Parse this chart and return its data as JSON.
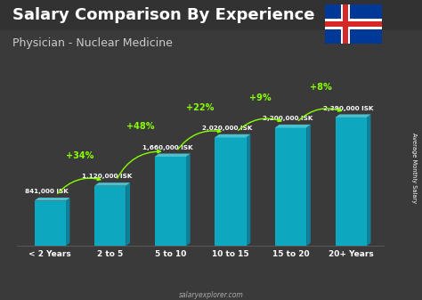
{
  "title": "Salary Comparison By Experience",
  "subtitle": "Physician - Nuclear Medicine",
  "categories": [
    "< 2 Years",
    "2 to 5",
    "5 to 10",
    "10 to 15",
    "15 to 20",
    "20+ Years"
  ],
  "values": [
    841000,
    1120000,
    1660000,
    2020000,
    2200000,
    2390000
  ],
  "labels": [
    "841,000 ISK",
    "1,120,000 ISK",
    "1,660,000 ISK",
    "2,020,000 ISK",
    "2,200,000 ISK",
    "2,390,000 ISK"
  ],
  "pct_changes": [
    "+34%",
    "+48%",
    "+22%",
    "+9%",
    "+8%"
  ],
  "bar_color_face": "#00CCEE",
  "bar_color_side": "#0099BB",
  "bar_color_top": "#55EEFF",
  "background_color": "#3a3a3a",
  "text_color_white": "#FFFFFF",
  "text_color_green": "#88FF00",
  "title_fontsize": 13,
  "subtitle_fontsize": 9,
  "ylabel": "Average Monthly Salary",
  "source": "salaryexplorer.com",
  "ylim": [
    0,
    2900000
  ],
  "bar_alpha": 0.75
}
